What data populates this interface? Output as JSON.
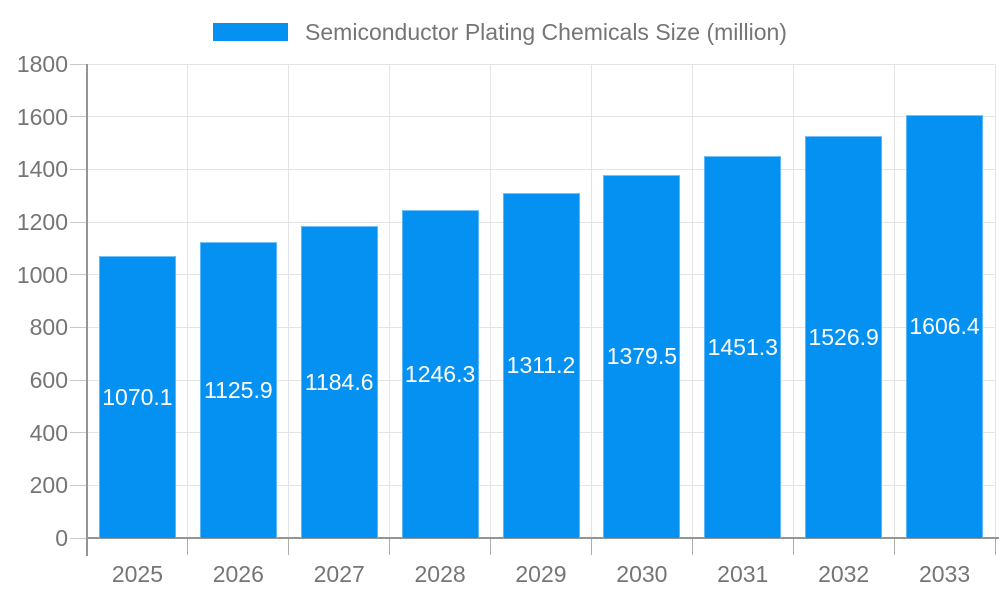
{
  "colors": {
    "bar": "#0591F2",
    "grid": "#E4E4E4",
    "axis": "#949494",
    "y_tick": "#C9C9C9",
    "x_tick": "#ADADAD",
    "tick_label_text": "#757575",
    "legend_text": "#757575",
    "bar_label_text": "#FFFFFF",
    "background": "#FFFFFF"
  },
  "chart_data": {
    "type": "bar",
    "title": "Semiconductor Plating Chemicals Size (million)",
    "series_name": "Semiconductor Plating Chemicals Size (million)",
    "categories": [
      "2025",
      "2026",
      "2027",
      "2028",
      "2029",
      "2030",
      "2031",
      "2032",
      "2033"
    ],
    "values": [
      1070.1,
      1125.9,
      1184.6,
      1246.3,
      1311.2,
      1379.5,
      1451.3,
      1526.9,
      1606.4
    ],
    "bar_labels": [
      "1070.1",
      "1125.9",
      "1184.6",
      "1246.3",
      "1311.2",
      "1379.5",
      "1451.3",
      "1526.9",
      "1606.4"
    ],
    "ytick_values": [
      0,
      200,
      400,
      600,
      800,
      1000,
      1200,
      1400,
      1600,
      1800
    ],
    "ytick_labels": [
      "0",
      "200",
      "400",
      "600",
      "800",
      "1000",
      "1200",
      "1400",
      "1600",
      "1800"
    ],
    "ylim": [
      0,
      1800
    ],
    "xlabel": "",
    "ylabel": "",
    "grid": true,
    "legend_position": "top",
    "bar_label_position": "inside-center"
  }
}
